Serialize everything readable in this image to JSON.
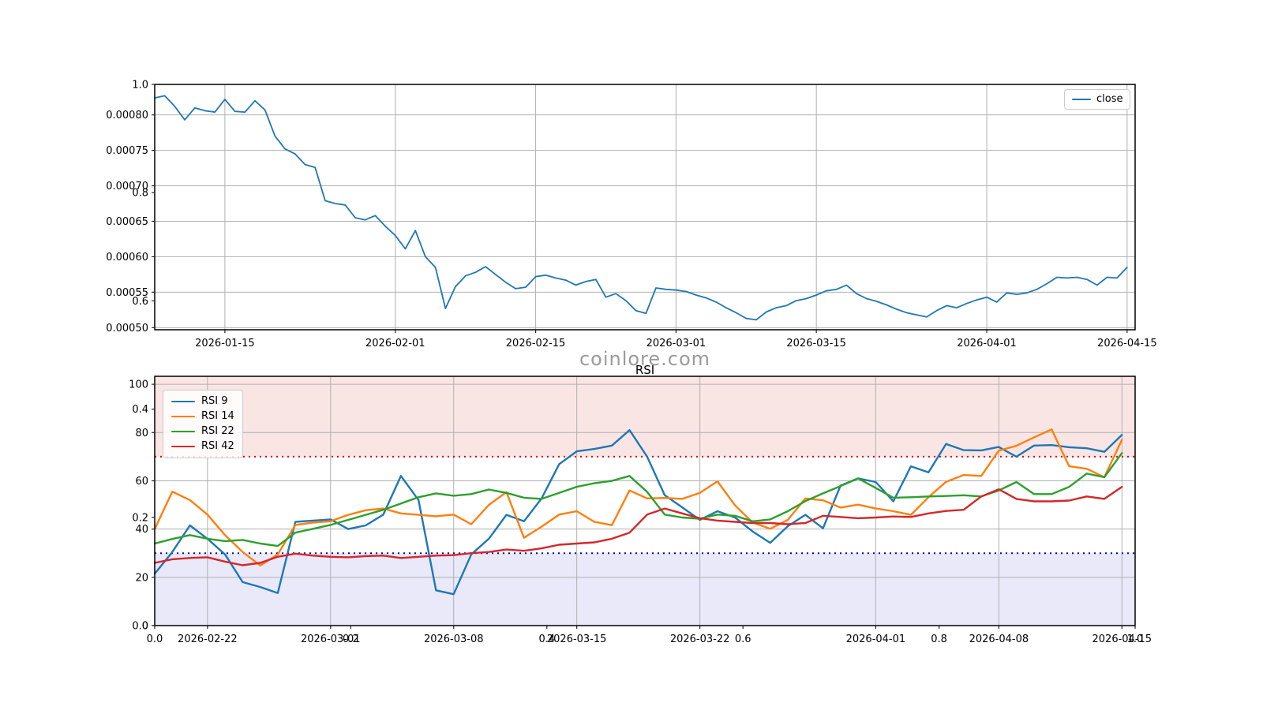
{
  "watermark": "coinlore.com",
  "colors": {
    "grid": "#b0b0b0",
    "spine": "#000000",
    "overbought_fill": "rgba(214,39,40,0.12)",
    "oversold_fill": "rgba(75,70,215,0.12)",
    "overbought_line": "#dc0000",
    "oversold_line": "#0000cd",
    "watermark_color": "#9b9b9b"
  },
  "figure_axis": {
    "y_tick_labels": [
      "1.0",
      "0.8",
      "0.6",
      "0.4",
      "0.2",
      "0.0"
    ],
    "x_tick_labels": [
      "0.0",
      "0.2",
      "0.4",
      "0.6",
      "0.8",
      "1.0"
    ]
  },
  "chart_data": [
    {
      "type": "line",
      "panel": "price",
      "title": "",
      "grid": true,
      "legend": {
        "position": "upper right",
        "entries": [
          "close"
        ]
      },
      "x_start_date": "2026-01-08",
      "xlim": [
        0,
        97.8
      ],
      "ylim": [
        0.000497,
        0.000843
      ],
      "line_width": 1.8,
      "x_ticks": [
        {
          "label": "2026-01-15",
          "index": 7
        },
        {
          "label": "2026-02-01",
          "index": 24
        },
        {
          "label": "2026-02-15",
          "index": 38
        },
        {
          "label": "2026-03-01",
          "index": 52
        },
        {
          "label": "2026-03-15",
          "index": 66
        },
        {
          "label": "2026-04-01",
          "index": 83
        },
        {
          "label": "2026-04-15",
          "index": 97
        }
      ],
      "y_ticks": [
        {
          "label": "0.00080",
          "value": 0.0008
        },
        {
          "label": "0.00075",
          "value": 0.00075
        },
        {
          "label": "0.00070",
          "value": 0.0007
        },
        {
          "label": "0.00065",
          "value": 0.00065
        },
        {
          "label": "0.00060",
          "value": 0.0006
        },
        {
          "label": "0.00055",
          "value": 0.00055
        },
        {
          "label": "0.00050",
          "value": 0.0005
        }
      ],
      "series": [
        {
          "name": "close",
          "color": "#1f77b4",
          "values": [
            0.000824,
            0.000827,
            0.000812,
            0.000793,
            0.00081,
            0.000806,
            0.000804,
            0.000822,
            0.000805,
            0.000804,
            0.00082,
            0.000807,
            0.00077,
            0.000752,
            0.000745,
            0.00073,
            0.000726,
            0.000679,
            0.000675,
            0.000673,
            0.000655,
            0.000652,
            0.000658,
            0.000643,
            0.00063,
            0.000611,
            0.000637,
            0.0006,
            0.000585,
            0.000527,
            0.000558,
            0.000573,
            0.000578,
            0.000586,
            0.000575,
            0.000564,
            0.000555,
            0.000557,
            0.000572,
            0.000574,
            0.00057,
            0.000567,
            0.00056,
            0.000565,
            0.000568,
            0.000543,
            0.000548,
            0.000538,
            0.000524,
            0.00052,
            0.000556,
            0.000554,
            0.000553,
            0.000551,
            0.000546,
            0.000542,
            0.000536,
            0.000528,
            0.000521,
            0.000513,
            0.000511,
            0.000522,
            0.000528,
            0.000531,
            0.000538,
            0.000541,
            0.000546,
            0.000552,
            0.000554,
            0.00056,
            0.000548,
            0.000541,
            0.000537,
            0.000532,
            0.000526,
            0.000521,
            0.000518,
            0.000515,
            0.000524,
            0.000531,
            0.000528,
            0.000534,
            0.000539,
            0.000543,
            0.000536,
            0.000549,
            0.000547,
            0.000549,
            0.000554,
            0.000562,
            0.000571,
            0.00057,
            0.000571,
            0.000568,
            0.00056,
            0.000571,
            0.00057,
            0.000585
          ]
        }
      ]
    },
    {
      "type": "line",
      "panel": "rsi",
      "title": "RSI",
      "grid": true,
      "legend": {
        "position": "upper left",
        "entries": [
          "RSI 9",
          "RSI 14",
          "RSI 22",
          "RSI 42"
        ]
      },
      "x_start_date": "2026-02-19",
      "xlim": [
        0,
        55.75
      ],
      "ylim": [
        0,
        103.3
      ],
      "line_width": 2.4,
      "overbought_level": 70,
      "oversold_level": 30,
      "x_ticks": [
        {
          "label": "2026-02-22",
          "index": 3
        },
        {
          "label": "2026-03-01",
          "index": 10
        },
        {
          "label": "2026-03-08",
          "index": 17
        },
        {
          "label": "2026-03-15",
          "index": 24
        },
        {
          "label": "2026-03-22",
          "index": 31
        },
        {
          "label": "2026-04-01",
          "index": 41
        },
        {
          "label": "2026-04-08",
          "index": 48
        },
        {
          "label": "2026-04-15",
          "index": 55
        }
      ],
      "y_ticks": [
        {
          "label": "100",
          "value": 100
        },
        {
          "label": "80",
          "value": 80
        },
        {
          "label": "60",
          "value": 60
        },
        {
          "label": "40",
          "value": 40
        },
        {
          "label": "20",
          "value": 20
        },
        {
          "label": "0",
          "value": 0
        }
      ],
      "series": [
        {
          "name": "RSI 9",
          "color": "#1f77b4",
          "values": [
            21.5,
            30.5,
            41.5,
            36.0,
            29.5,
            18.0,
            16.0,
            13.5,
            43.0,
            43.5,
            44.0,
            40.0,
            41.5,
            46.0,
            62.0,
            52.0,
            14.6,
            13.0,
            29.5,
            36.0,
            45.9,
            43.2,
            52.7,
            66.9,
            72.2,
            73.2,
            74.6,
            81.0,
            70.0,
            54.0,
            49.0,
            43.8,
            47.4,
            44.8,
            39.0,
            34.3,
            41.2,
            45.9,
            40.3,
            58.0,
            61.0,
            59.5,
            51.5,
            66.0,
            63.5,
            75.3,
            72.7,
            72.6,
            74.0,
            70.0,
            74.6,
            74.8,
            73.9,
            73.5,
            72.0,
            79.0
          ]
        },
        {
          "name": "RSI 14",
          "color": "#ff7f0e",
          "values": [
            40.0,
            55.5,
            52.0,
            46.0,
            37.5,
            30.5,
            24.9,
            29.5,
            41.7,
            42.7,
            43.2,
            45.9,
            47.8,
            48.5,
            46.5,
            45.9,
            45.3,
            46.0,
            42.0,
            50.0,
            55.3,
            36.4,
            41.0,
            46.0,
            47.4,
            43.0,
            41.6,
            56.0,
            52.7,
            52.9,
            52.5,
            55.0,
            59.8,
            49.8,
            42.7,
            40.1,
            43.8,
            52.7,
            51.9,
            48.9,
            50.1,
            48.5,
            47.4,
            45.9,
            53.2,
            59.6,
            62.4,
            62.0,
            72.5,
            74.5,
            78.0,
            81.3,
            66.0,
            65.0,
            61.5,
            77.0
          ]
        },
        {
          "name": "RSI 22",
          "color": "#2ca02c",
          "values": [
            34.0,
            35.9,
            37.5,
            36.0,
            35.0,
            35.5,
            34.0,
            33.0,
            38.5,
            40.1,
            41.7,
            43.8,
            45.9,
            48.0,
            50.6,
            53.2,
            54.8,
            53.8,
            54.5,
            56.4,
            55.0,
            53.0,
            52.5,
            55.0,
            57.5,
            59.0,
            60.0,
            62.0,
            55.4,
            46.0,
            44.8,
            44.3,
            46.0,
            45.5,
            43.2,
            44.0,
            47.4,
            51.6,
            54.8,
            57.8,
            61.0,
            57.0,
            53.0,
            53.2,
            53.5,
            53.7,
            54.0,
            53.5,
            56.0,
            59.5,
            54.5,
            54.5,
            57.5,
            63.0,
            61.5,
            71.5
          ]
        },
        {
          "name": "RSI 42",
          "color": "#d62728",
          "values": [
            26.0,
            27.5,
            28.0,
            28.3,
            26.5,
            25.0,
            26.0,
            28.5,
            29.8,
            29.0,
            28.5,
            28.3,
            28.8,
            29.0,
            28.0,
            28.5,
            29.0,
            29.2,
            30.0,
            30.5,
            31.5,
            31.0,
            32.0,
            33.5,
            34.0,
            34.5,
            36.0,
            38.5,
            46.0,
            48.5,
            46.5,
            44.5,
            43.5,
            43.0,
            42.5,
            42.5,
            42.0,
            42.5,
            45.5,
            45.0,
            44.5,
            44.8,
            45.2,
            45.0,
            46.5,
            47.5,
            48.0,
            53.5,
            56.5,
            52.5,
            51.5,
            51.5,
            51.8,
            53.5,
            52.5,
            57.5
          ]
        }
      ]
    }
  ]
}
